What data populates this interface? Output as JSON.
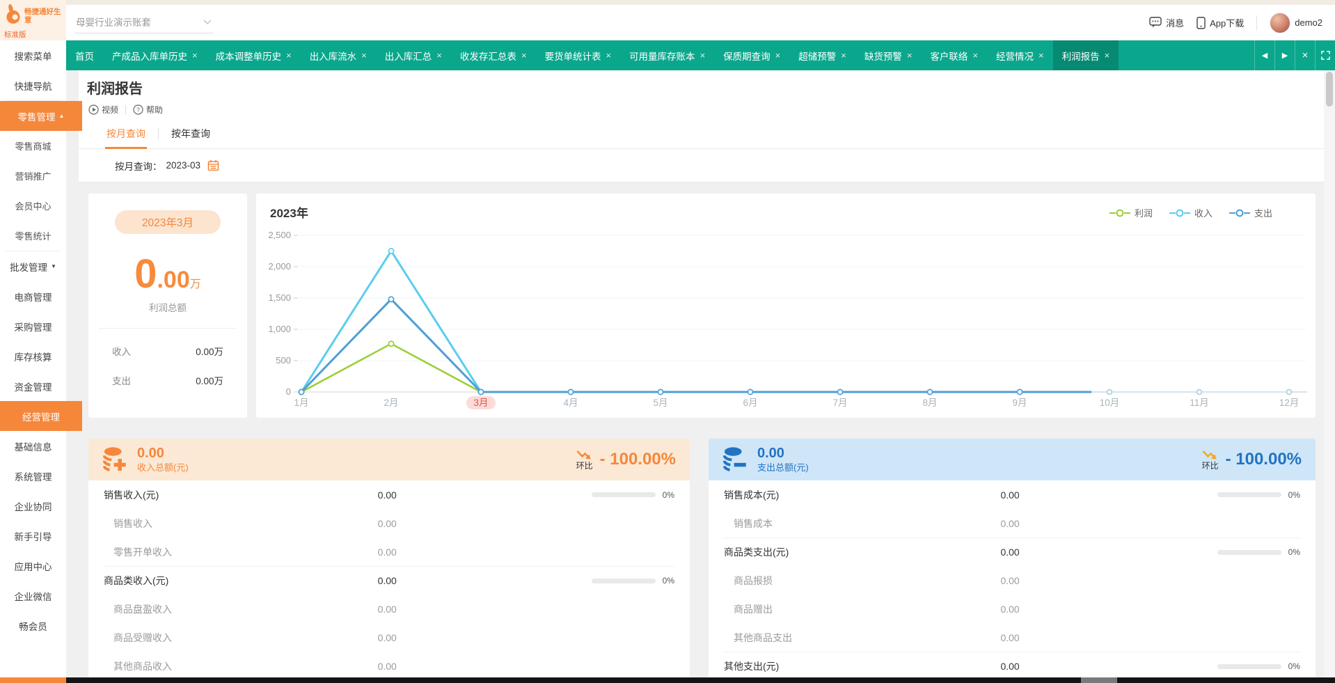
{
  "colors": {
    "tab_teal": "#0ba78d",
    "tab_teal_active": "#078a72",
    "accent_orange": "#f5873b",
    "accent_blue": "#2273c3",
    "chart_profit": "#9bce33",
    "chart_income": "#5bcdee",
    "chart_expense": "#4d9fd6",
    "highlight_red": "#e4554a"
  },
  "header": {
    "brand": "畅捷通好生意",
    "edition": "标准版",
    "account_select": "母婴行业演示账套",
    "messages_label": "消息",
    "app_download_label": "App下载",
    "username": "demo2"
  },
  "tab_bar": {
    "tabs": [
      {
        "label": "首页",
        "closable": false,
        "active": false
      },
      {
        "label": "产成品入库单历史",
        "closable": true,
        "active": false
      },
      {
        "label": "成本调整单历史",
        "closable": true,
        "active": false
      },
      {
        "label": "出入库流水",
        "closable": true,
        "active": false
      },
      {
        "label": "出入库汇总",
        "closable": true,
        "active": false
      },
      {
        "label": "收发存汇总表",
        "closable": true,
        "active": false
      },
      {
        "label": "要货单统计表",
        "closable": true,
        "active": false
      },
      {
        "label": "可用量库存账本",
        "closable": true,
        "active": false
      },
      {
        "label": "保质期查询",
        "closable": true,
        "active": false
      },
      {
        "label": "超储预警",
        "closable": true,
        "active": false
      },
      {
        "label": "缺货预警",
        "closable": true,
        "active": false
      },
      {
        "label": "客户联络",
        "closable": true,
        "active": false
      },
      {
        "label": "经营情况",
        "closable": true,
        "active": false
      },
      {
        "label": "利润报告",
        "closable": true,
        "active": true
      }
    ]
  },
  "sidebar": {
    "items": [
      {
        "label": "搜索菜单",
        "type": "item"
      },
      {
        "label": "快捷导航",
        "type": "item",
        "divider_after": true
      },
      {
        "label": "零售管理",
        "type": "group",
        "arrow": "up",
        "active": true
      },
      {
        "label": "零售商城",
        "type": "subitem"
      },
      {
        "label": "营销推广",
        "type": "subitem"
      },
      {
        "label": "会员中心",
        "type": "subitem"
      },
      {
        "label": "零售统计",
        "type": "subitem",
        "divider_after": true
      },
      {
        "label": "批发管理",
        "type": "group",
        "arrow": "down"
      },
      {
        "label": "电商管理",
        "type": "item"
      },
      {
        "label": "采购管理",
        "type": "item"
      },
      {
        "label": "库存核算",
        "type": "item"
      },
      {
        "label": "资金管理",
        "type": "item"
      },
      {
        "label": "经营管理",
        "type": "item",
        "active": true
      },
      {
        "label": "基础信息",
        "type": "item"
      },
      {
        "label": "系统管理",
        "type": "item"
      },
      {
        "label": "企业协同",
        "type": "item"
      },
      {
        "label": "新手引导",
        "type": "item"
      },
      {
        "label": "应用中心",
        "type": "item"
      },
      {
        "label": "企业微信",
        "type": "item"
      },
      {
        "label": "畅会员",
        "type": "item"
      }
    ]
  },
  "page": {
    "title": "利润报告",
    "video_label": "视频",
    "help_label": "帮助",
    "query_tabs": [
      {
        "label": "按月查询",
        "active": true
      },
      {
        "label": "按年查询",
        "active": false
      }
    ],
    "filter_label": "按月查询：",
    "filter_value": "2023-03"
  },
  "summary_card": {
    "period": "2023年3月",
    "value_integer": "0",
    "value_decimal": ".00",
    "value_unit": "万",
    "value_label": "利润总额",
    "rows": [
      {
        "label": "收入",
        "value": "0.00万"
      },
      {
        "label": "支出",
        "value": "0.00万"
      }
    ]
  },
  "chart_data": {
    "type": "line",
    "title": "2023年",
    "x": [
      "1月",
      "2月",
      "3月",
      "4月",
      "5月",
      "6月",
      "7月",
      "8月",
      "9月",
      "10月",
      "11月",
      "12月"
    ],
    "highlight_x": "3月",
    "ylim": [
      0,
      2500
    ],
    "yticks": [
      0,
      500,
      1000,
      1500,
      2000,
      2500
    ],
    "ytick_labels": [
      "0",
      "500",
      "1,000",
      "1,500",
      "2,000",
      "2,500"
    ],
    "grid": true,
    "legend_position": "top-right",
    "series": [
      {
        "name": "利润",
        "color": "#9bce33",
        "values": [
          0,
          770,
          0
        ]
      },
      {
        "name": "收入",
        "color": "#5bcdee",
        "values": [
          0,
          2250,
          0
        ]
      },
      {
        "name": "支出",
        "color": "#4d9fd6",
        "values": [
          0,
          1480,
          0,
          0,
          0,
          0,
          0,
          0,
          0
        ],
        "line_extends_to_x_index": 8.8
      }
    ]
  },
  "income_card": {
    "value": "0.00",
    "label": "收入总额(元)",
    "ratio_label": "环比",
    "ratio_value": "- 100.00%",
    "rows": [
      {
        "label": "销售收入(元)",
        "value": "0.00",
        "percent": "0%",
        "level": "parent"
      },
      {
        "label": "销售收入",
        "value": "0.00",
        "level": "child"
      },
      {
        "label": "零售开单收入",
        "value": "0.00",
        "level": "child"
      },
      {
        "label": "商品类收入(元)",
        "value": "0.00",
        "percent": "0%",
        "level": "parent"
      },
      {
        "label": "商品盘盈收入",
        "value": "0.00",
        "level": "child"
      },
      {
        "label": "商品受赠收入",
        "value": "0.00",
        "level": "child"
      },
      {
        "label": "其他商品收入",
        "value": "0.00",
        "level": "child"
      }
    ]
  },
  "expense_card": {
    "value": "0.00",
    "label": "支出总额(元)",
    "ratio_label": "环比",
    "ratio_value": "- 100.00%",
    "rows": [
      {
        "label": "销售成本(元)",
        "value": "0.00",
        "percent": "0%",
        "level": "parent"
      },
      {
        "label": "销售成本",
        "value": "0.00",
        "level": "child"
      },
      {
        "label": "商品类支出(元)",
        "value": "0.00",
        "percent": "0%",
        "level": "parent"
      },
      {
        "label": "商品报损",
        "value": "0.00",
        "level": "child"
      },
      {
        "label": "商品赠出",
        "value": "0.00",
        "level": "child"
      },
      {
        "label": "其他商品支出",
        "value": "0.00",
        "level": "child"
      },
      {
        "label": "其他支出(元)",
        "value": "0.00",
        "percent": "0%",
        "level": "parent"
      }
    ]
  }
}
